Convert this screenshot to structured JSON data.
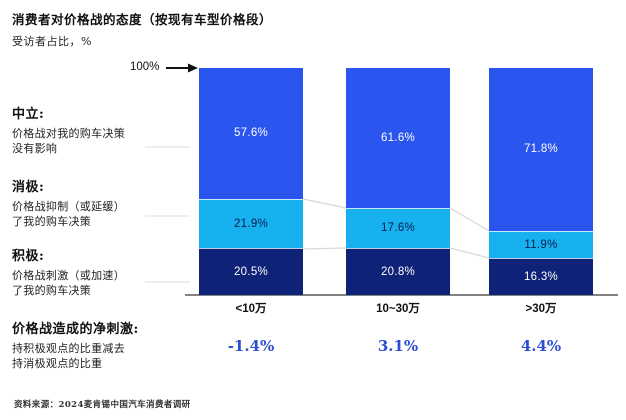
{
  "title": "消费者对价格战的态度（按现有车型价格段）",
  "subtitle": "受访者占比，%",
  "axis_top_label": "100%",
  "colors": {
    "neutral_blue": "#2b55ef",
    "negative_cyan": "#16b1ee",
    "positive_navy": "#0e2277",
    "net_value_text": "#2b4fd0",
    "axis_line": "#595959",
    "connector_line": "#d8d8d8"
  },
  "row_labels": [
    {
      "heading": "中立:",
      "desc_line1": "价格战对我的购车决策",
      "desc_line2": "没有影响"
    },
    {
      "heading": "消极:",
      "desc_line1": "价格战抑制（或延缓）",
      "desc_line2": "了我的购车决策"
    },
    {
      "heading": "积极:",
      "desc_line1": "价格战刺激（或加速）",
      "desc_line2": "了我的购车决策"
    }
  ],
  "net_block": {
    "heading": "价格战造成的净刺激:",
    "desc_line1": "持积极观点的比重减去",
    "desc_line2": "持消极观点的比重"
  },
  "source": "资料来源：2024麦肯锡中国汽车消费者调研",
  "chart_data": {
    "type": "bar",
    "stacked": true,
    "percent_stacked": true,
    "unit": "%",
    "title": "消费者对价格战的态度（按现有车型价格段）",
    "ylabel": "受访者占比，%",
    "ylim": [
      0,
      100
    ],
    "grid": false,
    "categories": [
      "<10万",
      "10~30万",
      ">30万"
    ],
    "series": [
      {
        "name": "中立：价格战对我的购车决策没有影响",
        "color": "#2b55ef",
        "values": [
          57.6,
          61.6,
          71.8
        ],
        "display": [
          "57.6%",
          "61.6%",
          "71.8%"
        ]
      },
      {
        "name": "消极：价格战抑制（或延缓）了我的购车决策",
        "color": "#16b1ee",
        "values": [
          21.9,
          17.6,
          11.9
        ],
        "display": [
          "21.9%",
          "17.6%",
          "11.9%"
        ]
      },
      {
        "name": "积极：价格战刺激（或加速）了我的购车决策",
        "color": "#0e2277",
        "values": [
          20.5,
          20.8,
          16.3
        ],
        "display": [
          "20.5%",
          "20.8%",
          "16.3%"
        ]
      }
    ],
    "net_values": [
      "-1.4%",
      "3.1%",
      "4.4%"
    ]
  }
}
